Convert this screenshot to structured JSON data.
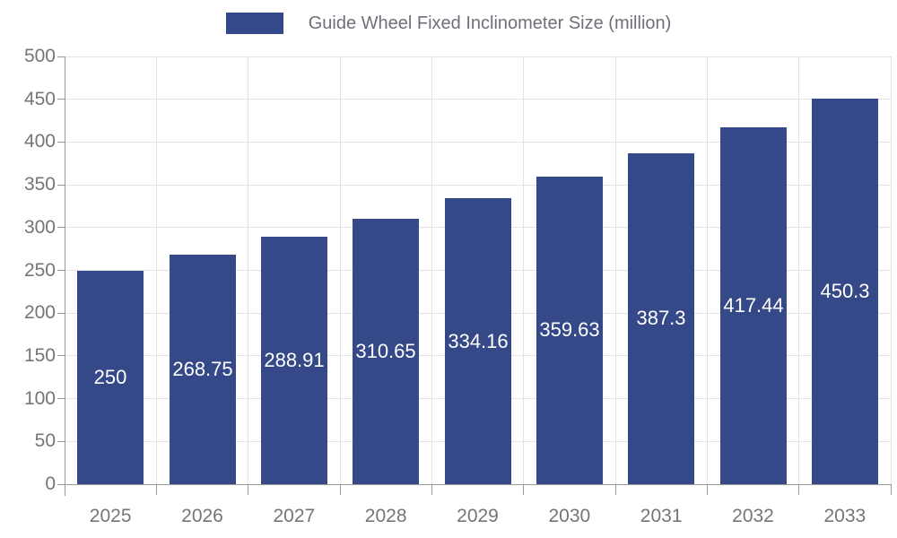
{
  "legend": {
    "label": "Guide Wheel Fixed Inclinometer Size (million)"
  },
  "chart_data": {
    "type": "bar",
    "title": "Guide Wheel Fixed Inclinometer Size (million)",
    "categories": [
      "2025",
      "2026",
      "2027",
      "2028",
      "2029",
      "2030",
      "2031",
      "2032",
      "2033"
    ],
    "values": [
      250,
      268.75,
      288.91,
      310.65,
      334.16,
      359.63,
      387.3,
      417.44,
      450.3
    ],
    "value_labels": [
      "250",
      "268.75",
      "288.91",
      "310.65",
      "334.16",
      "359.63",
      "387.3",
      "417.44",
      "450.3"
    ],
    "xlabel": "",
    "ylabel": "",
    "ylim": [
      0,
      500
    ],
    "ytick_step": 50,
    "grid": true,
    "legend_position": "top",
    "colors": {
      "bar": "#354988",
      "value_label": "#ffffff",
      "axis_label": "#757575",
      "legend_text": "#6e7079",
      "gridline": "#e3e3e7",
      "axis_line": "#999999",
      "background": "#ffffff"
    }
  }
}
